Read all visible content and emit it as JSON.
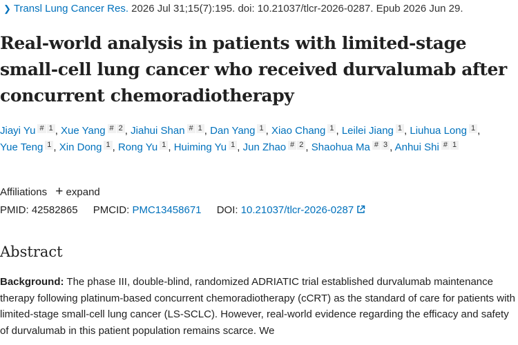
{
  "citation": {
    "journal": "Transl Lung Cancer Res.",
    "details": "2026 Jul 31;15(7):195. doi: 10.21037/tlcr-2026-0287. Epub 2026 Jun 29."
  },
  "title": "Real-world analysis in patients with limited-stage small-cell lung cancer who received durvalumab after concurrent chemoradiotherapy",
  "authors": {
    "separator": ",",
    "list": [
      {
        "name": "Jiayi Yu",
        "equal": "#",
        "aff": "1"
      },
      {
        "name": "Xue Yang",
        "equal": "#",
        "aff": "2"
      },
      {
        "name": "Jiahui Shan",
        "equal": "#",
        "aff": "1"
      },
      {
        "name": "Dan Yang",
        "aff": "1"
      },
      {
        "name": "Xiao Chang",
        "aff": "1"
      },
      {
        "name": "Leilei Jiang",
        "aff": "1"
      },
      {
        "name": "Liuhua Long",
        "aff": "1"
      },
      {
        "name": "Yue Teng",
        "aff": "1"
      },
      {
        "name": "Xin Dong",
        "aff": "1"
      },
      {
        "name": "Rong Yu",
        "aff": "1"
      },
      {
        "name": "Huiming Yu",
        "aff": "1"
      },
      {
        "name": "Jun Zhao",
        "equal": "#",
        "aff": "2"
      },
      {
        "name": "Shaohua Ma",
        "equal": "#",
        "aff": "3"
      },
      {
        "name": "Anhui Shi",
        "equal": "#",
        "aff": "1"
      }
    ]
  },
  "affiliations": {
    "label": "Affiliations",
    "toggle": "expand"
  },
  "ids": {
    "pmid_label": "PMID:",
    "pmid": "42582865",
    "pmcid_label": "PMCID:",
    "pmcid": "PMC13458671",
    "doi_label": "DOI:",
    "doi": "10.21037/tlcr-2026-0287"
  },
  "abstract": {
    "heading": "Abstract",
    "paragraphs": [
      {
        "label": "Background:",
        "text": "The phase III, double-blind, randomized ADRIATIC trial established durvalumab maintenance therapy following platinum-based concurrent chemoradiotherapy (cCRT) as the standard of care for patients with limited-stage small-cell lung cancer (LS-SCLC). However, real-world evidence regarding the efficacy and safety of durvalumab in this patient population remains scarce. We"
      }
    ]
  }
}
